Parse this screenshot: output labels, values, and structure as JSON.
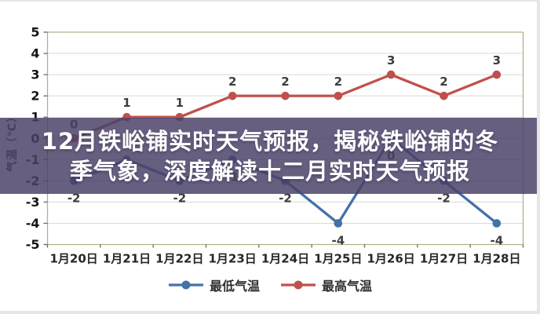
{
  "overlay": {
    "line1": "12月铁峪铺实时天气预报，揭秘铁峪铺的冬",
    "line2": "季气象，深度解读十二月实时天气预报",
    "background_rgba": "rgba(74,64,102,0.84)",
    "text_color": "#ffffff"
  },
  "chart_data": {
    "type": "line",
    "title": "",
    "ylabel": "气温（℃）",
    "categories": [
      "1月20日",
      "1月21日",
      "1月22日",
      "1月23日",
      "1月24日",
      "1月25日",
      "1月26日",
      "1月27日",
      "1月28日"
    ],
    "series": [
      {
        "name": "最低气温",
        "color": "#4472a8",
        "marker": "circle",
        "label_position": "below",
        "values": [
          -2,
          -1,
          -2,
          -1,
          -2,
          -4,
          0,
          -2,
          -4
        ]
      },
      {
        "name": "最高气温",
        "color": "#c0504d",
        "marker": "circle",
        "label_position": "above",
        "values": [
          0,
          1,
          1,
          2,
          2,
          2,
          3,
          2,
          3
        ]
      }
    ],
    "ylim": [
      -5,
      5
    ],
    "ytick_step": 1,
    "grid": true,
    "legend_position": "bottom",
    "axis_colors": {
      "grid": "#dad9d4",
      "border": "#b6b08a",
      "tick": "#6b6a5e",
      "tick_label": "#151515",
      "data_label": "#3d3d3d"
    }
  }
}
